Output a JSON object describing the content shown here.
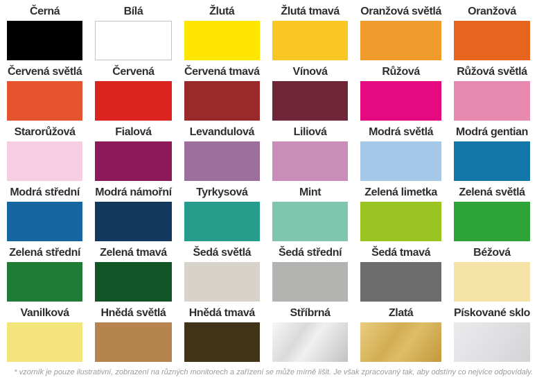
{
  "palette": {
    "items": [
      {
        "label": "Černá",
        "color": "#000000"
      },
      {
        "label": "Bílá",
        "color": "#ffffff",
        "border": "#c4c4c4"
      },
      {
        "label": "Žlutá",
        "color": "#ffe600"
      },
      {
        "label": "Žlutá tmavá",
        "color": "#f9c623"
      },
      {
        "label": "Oranžová světlá",
        "color": "#f09c2c"
      },
      {
        "label": "Oranžová",
        "color": "#e6641e"
      },
      {
        "label": "Červená světlá",
        "color": "#e5532f"
      },
      {
        "label": "Červená",
        "color": "#db2420"
      },
      {
        "label": "Červená tmavá",
        "color": "#9a292b"
      },
      {
        "label": "Vínová",
        "color": "#6f2639"
      },
      {
        "label": "Růžová",
        "color": "#e50a80"
      },
      {
        "label": "Růžová světlá",
        "color": "#e889b0"
      },
      {
        "label": "Starorůžová",
        "color": "#f5cee1"
      },
      {
        "label": "Fialová",
        "color": "#8c1a5b"
      },
      {
        "label": "Levandulová",
        "color": "#9c6e9b"
      },
      {
        "label": "Liliová",
        "color": "#ca8dba"
      },
      {
        "label": "Modrá světlá",
        "color": "#a5c8e9"
      },
      {
        "label": "Modrá gentian",
        "color": "#1377a9"
      },
      {
        "label": "Modrá střední",
        "color": "#1566a1"
      },
      {
        "label": "Modrá námořní",
        "color": "#133a5e"
      },
      {
        "label": "Tyrkysová",
        "color": "#259c8c"
      },
      {
        "label": "Mint",
        "color": "#80c5ae"
      },
      {
        "label": "Zelená limetka",
        "color": "#9ac421"
      },
      {
        "label": "Zelená světlá",
        "color": "#2da338"
      },
      {
        "label": "Zelená střední",
        "color": "#1e7c37"
      },
      {
        "label": "Zelená tmavá",
        "color": "#115426"
      },
      {
        "label": "Šedá světlá",
        "color": "#d7d3cb"
      },
      {
        "label": "Šedá střední",
        "color": "#b3b3b1"
      },
      {
        "label": "Šedá tmavá",
        "color": "#6c6c6c"
      },
      {
        "label": "Béžová",
        "color": "#f5e2a6"
      },
      {
        "label": "Vanilková",
        "color": "#f3e47b"
      },
      {
        "label": "Hnědá světlá",
        "color": "#b5844f"
      },
      {
        "label": "Hnědá tmavá",
        "color": "#403318"
      },
      {
        "label": "Stříbrná",
        "color": "linear-gradient(125deg, #f7f7f7 0%, #dadada 35%, #f0f0f0 52%, #c1c1c1 100%)"
      },
      {
        "label": "Zlatá",
        "color": "linear-gradient(125deg, #e9cd80 0%, #d3ad53 40%, #debc68 58%, #c3993b 100%)"
      },
      {
        "label": "Pískované sklo",
        "color": "linear-gradient(125deg, #eaebec 0%, #dedfe1 55%, #d2d3d5 100%)"
      }
    ]
  },
  "footer": {
    "note": "* vzorník je pouze ilustrativní, zobrazení na různých monitorech a zařízení se může mírně lišit. Je však zpracovaný tak, aby odstíny co nejvíce odpovídaly."
  }
}
